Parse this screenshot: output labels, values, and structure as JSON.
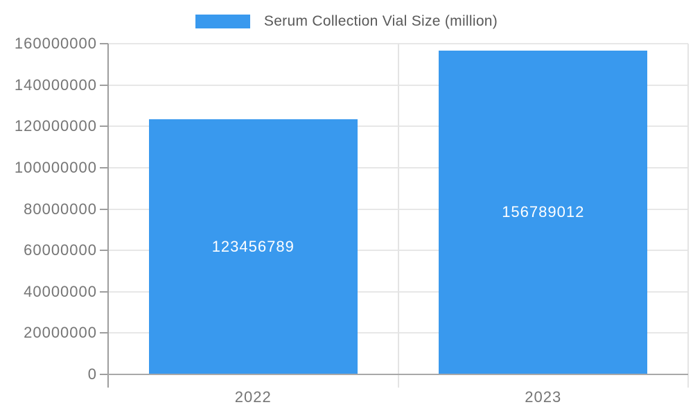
{
  "chart_data": {
    "type": "bar",
    "title": "",
    "legend": "Serum Collection Vial Size (million)",
    "legend_position": "top",
    "categories": [
      "2022",
      "2023"
    ],
    "series": [
      {
        "name": "Serum Collection Vial Size (million)",
        "values": [
          123456789,
          156789012
        ]
      }
    ],
    "value_labels": [
      "123456789",
      "156789012"
    ],
    "ylim": [
      0,
      160000000
    ],
    "ytick_step": 20000000,
    "ytick_labels": [
      "0",
      "20000000",
      "40000000",
      "60000000",
      "80000000",
      "100000000",
      "120000000",
      "140000000",
      "160000000"
    ],
    "grid": true,
    "colors": {
      "bar": "#3999EE",
      "gridline": "#E7E7E7",
      "boundary_line": "#E4E4E4",
      "axis_line": "#9E9E9E",
      "baseline": "#A8A8A8",
      "tick_label": "#757575",
      "legend_text": "#595959",
      "value_label": "#FFFFFF",
      "background": "#FFFFFF"
    }
  }
}
